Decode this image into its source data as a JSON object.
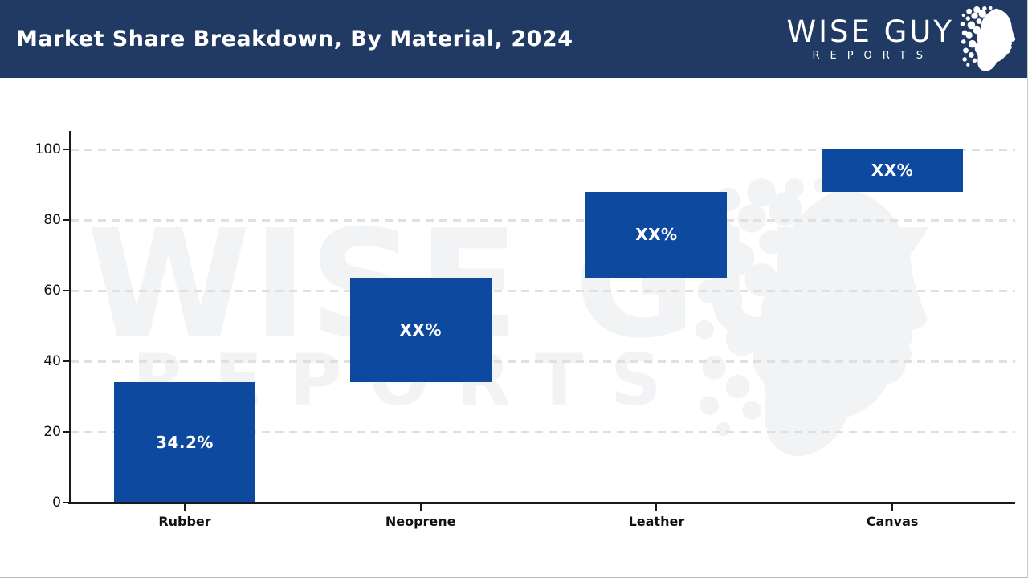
{
  "header": {
    "title": "Market Share Breakdown, By Material, 2024",
    "navy": "#213a64",
    "logo": {
      "line1": "WISE GUY",
      "line2": "REPORTS"
    }
  },
  "watermark": {
    "line1": "WISE GUY",
    "line2": "REPORTS"
  },
  "chart_data": {
    "type": "bar",
    "subtype": "waterfall",
    "title": "Market Share Breakdown, By Material, 2024",
    "categories": [
      "Rubber",
      "Neoprene",
      "Leather",
      "Canvas"
    ],
    "segments": [
      {
        "category": "Rubber",
        "label": "34.2%",
        "start": 0,
        "end": 34.2,
        "value": 34.2
      },
      {
        "category": "Neoprene",
        "label": "XX%",
        "start": 34.2,
        "end": 63.6,
        "value": 29.4
      },
      {
        "category": "Leather",
        "label": "XX%",
        "start": 63.6,
        "end": 88.0,
        "value": 24.4
      },
      {
        "category": "Canvas",
        "label": "XX%",
        "start": 88.0,
        "end": 100.0,
        "value": 12.0
      }
    ],
    "yticks": [
      0,
      20,
      40,
      60,
      80,
      100
    ],
    "ylim": [
      0,
      105
    ],
    "xlabel": "",
    "ylabel": "",
    "grid": "horizontal-dashed",
    "legend": "none",
    "bar_color": "#0d4a9f"
  }
}
